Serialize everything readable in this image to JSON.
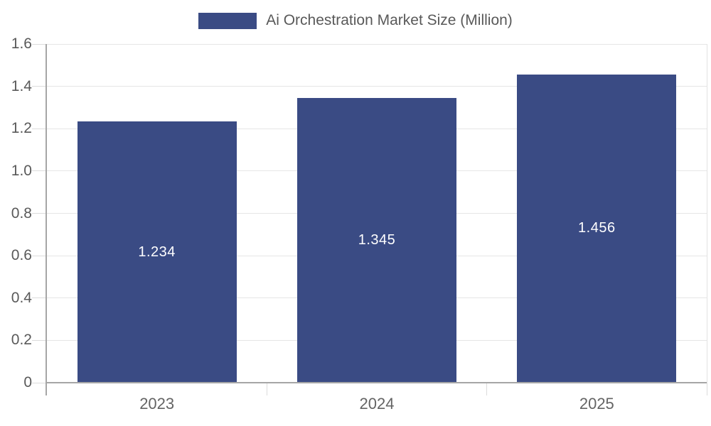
{
  "legend": {
    "label": "Ai Orchestration Market Size (Million)",
    "swatch_color": "#3A4B84"
  },
  "chart_data": {
    "type": "bar",
    "title": "Ai Orchestration Market Size (Million)",
    "categories": [
      "2023",
      "2024",
      "2025"
    ],
    "values": [
      1.234,
      1.345,
      1.456
    ],
    "bar_labels": [
      "1.234",
      "1.345",
      "1.456"
    ],
    "xlabel": "",
    "ylabel": "",
    "ylim": [
      0,
      1.6
    ],
    "ytick_labels": [
      "0",
      "0.2",
      "0.4",
      "0.6",
      "0.8",
      "1.0",
      "1.2",
      "1.4",
      "1.6"
    ],
    "grid": "horizontal",
    "legend_position": "top-center",
    "colors": {
      "bar": "#3A4B84",
      "bar_label_text": "#FFFFFF",
      "grid": "#E6E6E6",
      "tick": "#DCDCDC",
      "axis_spine": "#A6A6A6",
      "right_spine": "#E2E2E2",
      "tick_label": "#595959"
    }
  }
}
